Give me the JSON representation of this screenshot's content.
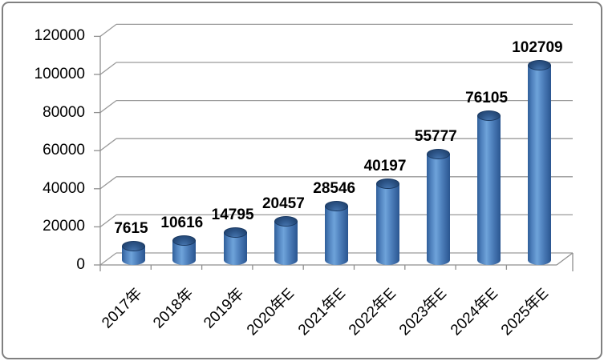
{
  "chart_data": {
    "type": "bar",
    "subtype": "3d-cylinder",
    "title": "",
    "categories": [
      "2017年",
      "2018年",
      "2019年",
      "2020年E",
      "2021年E",
      "2022年E",
      "2023年E",
      "2024年E",
      "2025年E"
    ],
    "values": [
      7615,
      10616,
      14795,
      20457,
      28546,
      40197,
      55777,
      76105,
      102709
    ],
    "data_labels": [
      "7615",
      "10616",
      "14795",
      "20457",
      "28546",
      "40197",
      "55777",
      "76105",
      "102709"
    ],
    "ylim": [
      0,
      120000
    ],
    "ytick_interval": 20000,
    "ytick_labels": [
      "0",
      "20000",
      "40000",
      "60000",
      "80000",
      "100000",
      "120000"
    ],
    "grid": true,
    "legend": false,
    "xlabel": "",
    "ylabel": ""
  },
  "colors": {
    "background": "#ffffff",
    "frame_border": "#808080",
    "gridline": "#9a9a9a",
    "axis": "#8f8f8f",
    "text": "#000000",
    "bar_body_main": "#4f81bd",
    "bar_body_light": "#6ea3da",
    "bar_body_dark": "#2f5e99",
    "bar_body_edge": "#2a5590",
    "bar_top_fill": "#2d5588",
    "bar_top_rim": "#1b3a63"
  }
}
